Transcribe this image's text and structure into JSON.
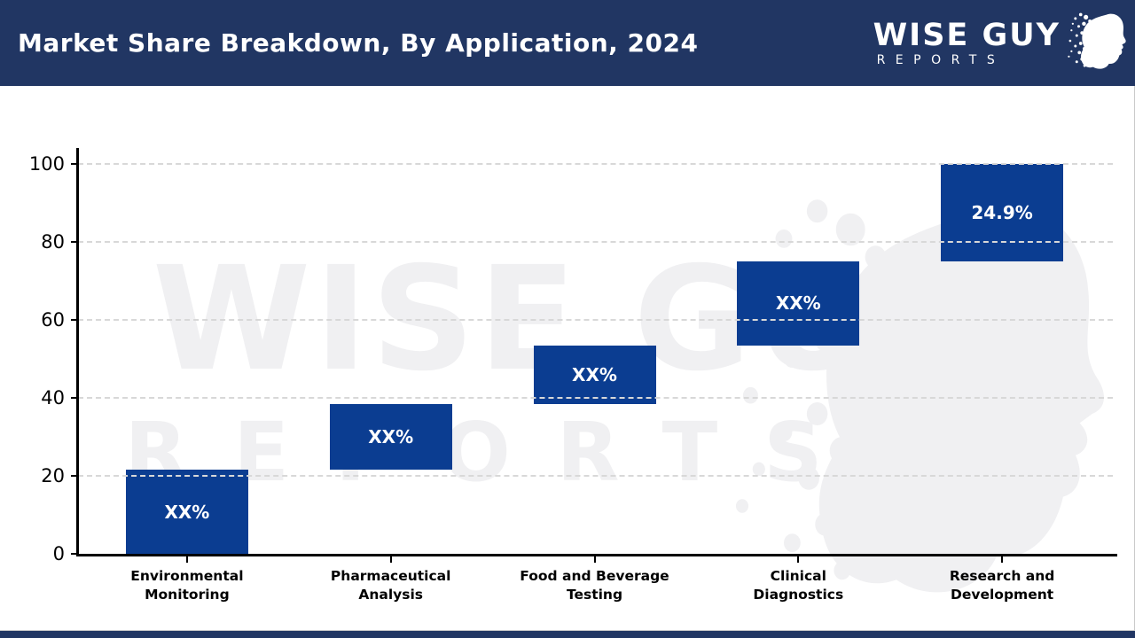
{
  "header": {
    "title": "Market Share Breakdown, By Application, 2024",
    "brand_line1": "WISE GUY",
    "brand_line2": "REPORTS"
  },
  "watermark": {
    "line1": "WISE GUY",
    "line2": "REPORTS"
  },
  "colors": {
    "navy": "#213663",
    "bar": "#0b3d91",
    "watermark": "#f0f0f2",
    "grid": "#d8d8d8",
    "axis": "#000000"
  },
  "chart_data": {
    "type": "bar",
    "subtype": "waterfall",
    "title": "Market Share Breakdown, By Application, 2024",
    "categories": [
      "Environmental Monitoring",
      "Pharmaceutical Analysis",
      "Food and Beverage Testing",
      "Clinical Diagnostics",
      "Research and Development"
    ],
    "segments": [
      {
        "category": "Environmental Monitoring",
        "category_lines": [
          "Environmental",
          "Monitoring"
        ],
        "start": 0,
        "end": 21.5,
        "value": 21.5,
        "label": "XX%"
      },
      {
        "category": "Pharmaceutical Analysis",
        "category_lines": [
          "Pharmaceutical",
          "Analysis"
        ],
        "start": 21.5,
        "end": 38.3,
        "value": 16.8,
        "label": "XX%"
      },
      {
        "category": "Food and Beverage Testing",
        "category_lines": [
          "Food and Beverage",
          "Testing"
        ],
        "start": 38.3,
        "end": 53.5,
        "value": 15.2,
        "label": "XX%"
      },
      {
        "category": "Clinical Diagnostics",
        "category_lines": [
          "Clinical",
          "Diagnostics"
        ],
        "start": 53.5,
        "end": 75.1,
        "value": 21.6,
        "label": "XX%"
      },
      {
        "category": "Research and Development",
        "category_lines": [
          "Research and",
          "Development"
        ],
        "start": 75.1,
        "end": 100,
        "value": 24.9,
        "label": "24.9%"
      }
    ],
    "ylim": [
      0,
      100
    ],
    "yticks": [
      0,
      20,
      40,
      60,
      80,
      100
    ],
    "xlabel": "",
    "ylabel": "",
    "grid": "horizontal-dashed",
    "legend": "none",
    "bar_color": "#0b3d91",
    "background": "#ffffff"
  }
}
